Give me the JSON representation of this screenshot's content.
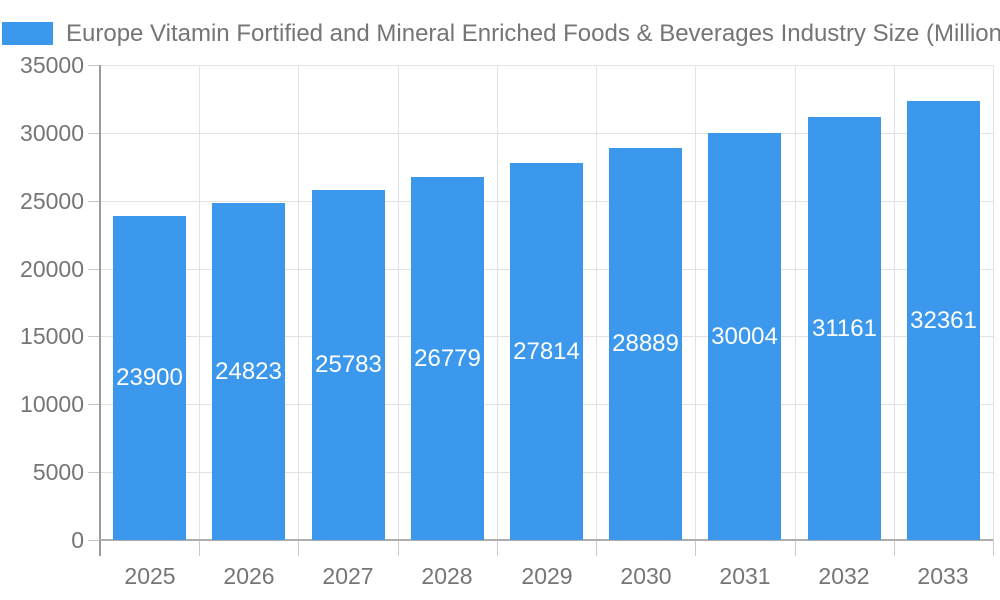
{
  "chart_data": {
    "type": "bar",
    "title": "Europe Vitamin Fortified and Mineral Enriched Foods & Beverages Industry Size (Million",
    "categories": [
      "2025",
      "2026",
      "2027",
      "2028",
      "2029",
      "2030",
      "2031",
      "2032",
      "2033"
    ],
    "values": [
      23900,
      24823,
      25783,
      26779,
      27814,
      28889,
      30004,
      31161,
      32361
    ],
    "value_labels": [
      "23900",
      "24823",
      "25783",
      "26779",
      "27814",
      "28889",
      "30004",
      "31161",
      "32361"
    ],
    "ylim": [
      0,
      35000
    ],
    "ytick_interval": 5000,
    "ytick_labels": [
      "0",
      "5000",
      "10000",
      "15000",
      "20000",
      "25000",
      "30000",
      "35000"
    ],
    "xlabel": "",
    "ylabel": "",
    "grid": "on",
    "legend_position": "top-left",
    "value_label_position": "centered-inside-bar",
    "colors": {
      "bar": "#3B98EC",
      "axis_text": "#757575",
      "grid": "#e2e2e2",
      "axis_line": "#9b9b9b",
      "baseline": "#aeaeae",
      "tick": "#c9c9c9",
      "value_label": "#ffffff",
      "background": "#ffffff"
    }
  }
}
